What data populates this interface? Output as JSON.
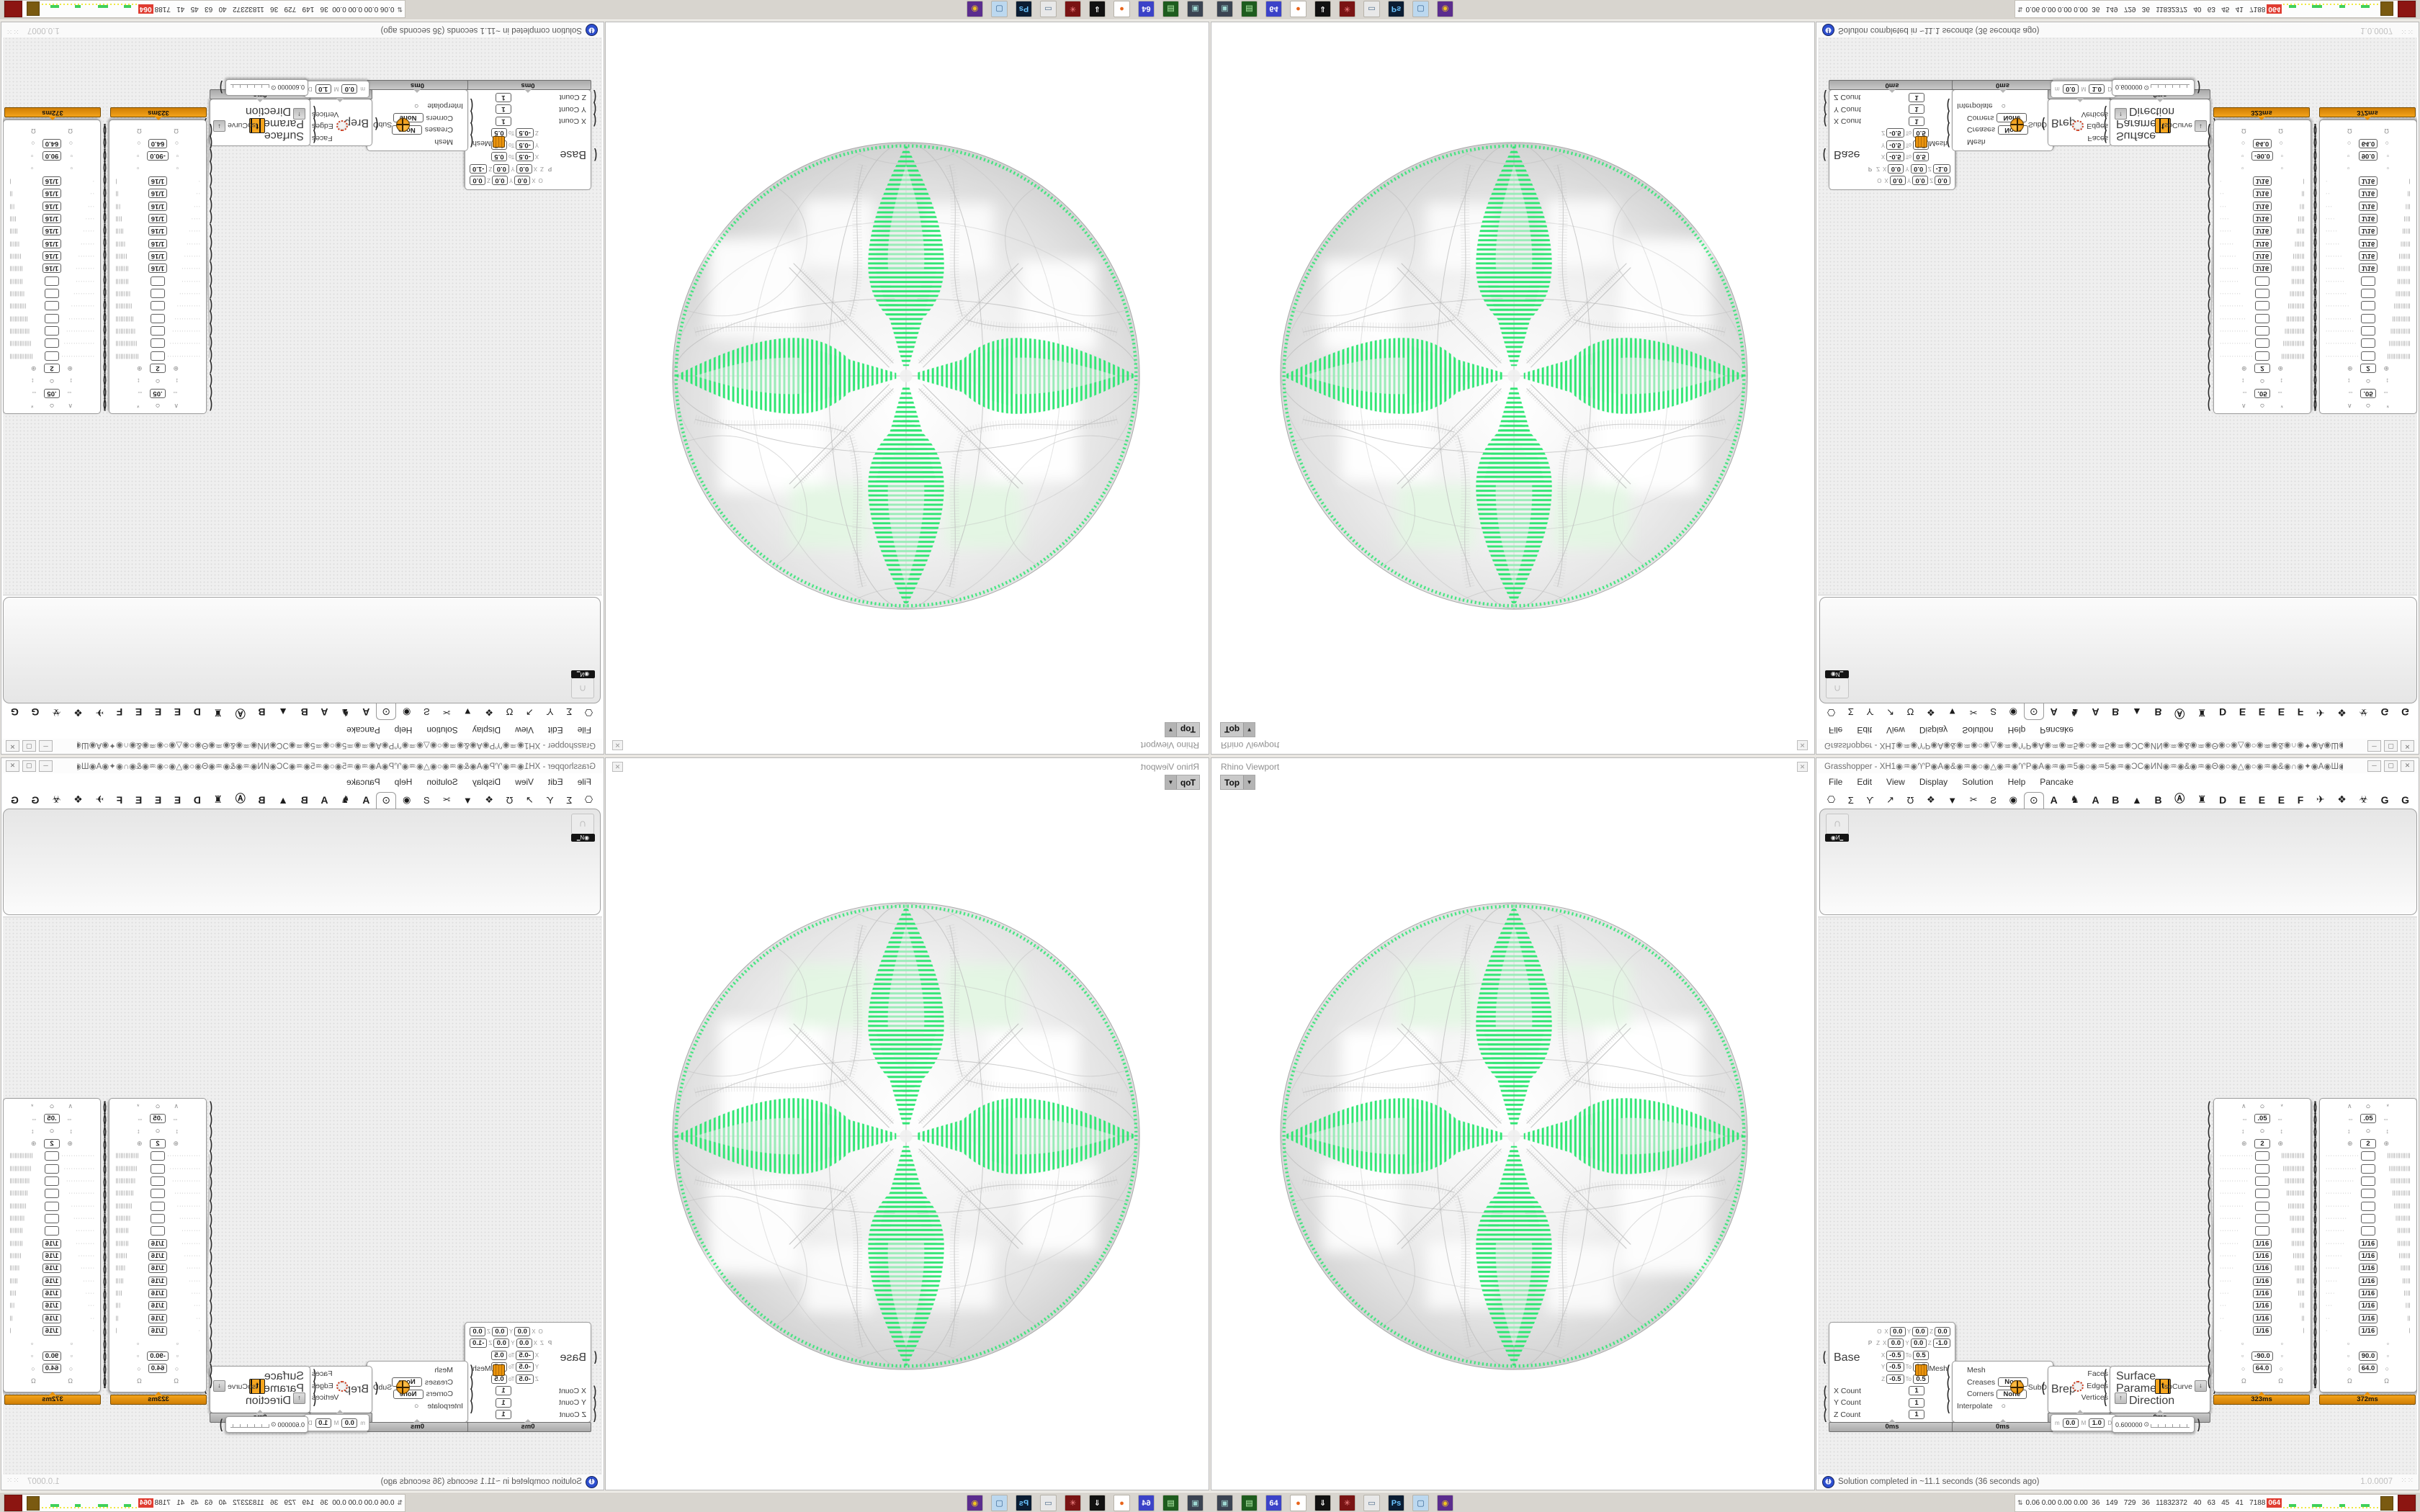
{
  "viewport": {
    "title": "Rhino Viewport",
    "close_glyph": "✕",
    "view_label": "Top",
    "dropdown_arrow": "▼"
  },
  "grasshopper": {
    "title": "Grasshopper - XH1◉♒◉♈P◉A◉&◉♒◉○◉△◉♒◉♈P◉A◉♒◉♒5◉○◉♒5◉♒◉ƆC◉ИN◉♒◉&◉♒◉Θ◉○◉△◉○◉♒◉&◉∩◉✦◉A◉Ш◉&◉∩◉ƆC◉○◉○◉○◉○◉○◉○◉○◉○Ɔ‗",
    "window_buttons": {
      "minimize": "─",
      "maximize": "▢",
      "close": "✕"
    },
    "menu": [
      "File",
      "Edit",
      "View",
      "Display",
      "Solution",
      "Help",
      "Pancake"
    ],
    "tabs_left": [
      "⎔",
      "Σ",
      "Ƴ",
      "↗",
      "Ʊ",
      "❖",
      "▼",
      "✂",
      "Ƨ",
      "◉"
    ],
    "selected_tab_glyph": "⊙",
    "tabs_right": [
      "A",
      "♞",
      "A",
      "B",
      "▲",
      "B",
      "Ⓐ",
      "♜",
      "D",
      "E",
      "E",
      "E",
      "F",
      "✈",
      "❖",
      "☣",
      "G",
      "G"
    ],
    "panel_tile": {
      "glyph": "∩",
      "badge": "◉И‗"
    },
    "status": {
      "text": "Solution completed in ~11.1 seconds (36 seconds ago)",
      "version": "1.0.0007",
      "grip": "⁙⁙"
    },
    "nodes": {
      "base": {
        "name": "Base",
        "p_label": "P",
        "point_rows": [
          {
            "label": "O",
            "fields": [
              [
                "X",
                "0.0"
              ],
              [
                "Y",
                "0.0"
              ],
              [
                "Z",
                "0.0"
              ]
            ]
          },
          {
            "label": "Z",
            "fields": [
              [
                "X",
                "0.0"
              ],
              [
                "Y",
                "0.0"
              ],
              [
                "Z",
                "-1.0"
              ]
            ]
          }
        ],
        "domains": [
          [
            "X",
            "-0.5",
            "0.5"
          ],
          [
            "Y",
            "-0.5",
            "0.5"
          ],
          [
            "Z",
            "-0.5",
            "0.5"
          ]
        ],
        "to_label": "To",
        "output": "Mesh",
        "counts": [
          [
            "X Count",
            "1"
          ],
          [
            "Y Count",
            "1"
          ],
          [
            "Z Count",
            "1"
          ]
        ],
        "time": "0ms"
      },
      "subd": {
        "input": "Mesh",
        "rows": [
          [
            "Creases",
            "None"
          ],
          [
            "Corners",
            "None"
          ]
        ],
        "interpolate_label": "Interpolate",
        "interpolate_glyph": "○",
        "output": "SubD",
        "time": "0ms"
      },
      "brep": {
        "input": "Brep",
        "outputs": [
          "Faces",
          "Edges",
          "Vertices"
        ],
        "time": "2ms"
      },
      "iso": {
        "inputs": [
          "Surface",
          "Parameter",
          "Direction"
        ],
        "param_badge": "t",
        "up_glyph": "↑",
        "down_glyph": "↓",
        "output": "IsoCurve",
        "time": "0ms"
      },
      "mmd_fields": [
        [
          "m",
          "0.0"
        ],
        [
          "M",
          "1.0"
        ],
        [
          "D",
          "6"
        ]
      ],
      "slider_value": "0.600000",
      "columns": [
        {
          "time": "323ms",
          "angle": "-90.0",
          "count": "64.0"
        },
        {
          "time": "372ms",
          "angle": "90.0",
          "count": "64.0"
        }
      ],
      "column_rows": [
        {
          "t": "g",
          "l": "∧",
          "c": "○",
          "r": "*"
        },
        {
          "t": "b",
          "l": "⇔",
          "v": ".05",
          "r": "⇔"
        },
        {
          "t": "g",
          "l": "↕",
          "c": "○",
          "r": "↕"
        },
        {
          "t": "b",
          "l": "⊕",
          "v": "2",
          "r": "⊕"
        },
        {
          "t": "s",
          "d": 14,
          "v": "",
          "b": 14
        },
        {
          "t": "s",
          "d": 13,
          "v": "",
          "b": 13
        },
        {
          "t": "s",
          "d": 12,
          "v": "",
          "b": 12
        },
        {
          "t": "s",
          "d": 11,
          "v": "",
          "b": 11
        },
        {
          "t": "s",
          "d": 10,
          "v": "",
          "b": 10
        },
        {
          "t": "s",
          "d": 9,
          "v": "",
          "b": 9
        },
        {
          "t": "s",
          "d": 8,
          "v": "",
          "b": 8
        },
        {
          "t": "s",
          "d": 8,
          "v": "1/16",
          "b": 8
        },
        {
          "t": "s",
          "d": 7,
          "v": "1/16",
          "b": 7
        },
        {
          "t": "s",
          "d": 6,
          "v": "1/16",
          "b": 6
        },
        {
          "t": "s",
          "d": 5,
          "v": "1/16",
          "b": 5
        },
        {
          "t": "s",
          "d": 4,
          "v": "1/16",
          "b": 4
        },
        {
          "t": "s",
          "d": 3,
          "v": "1/16",
          "b": 3
        },
        {
          "t": "s",
          "d": 2,
          "v": "1/16",
          "b": 2
        },
        {
          "t": "s",
          "d": 1,
          "v": "1/16",
          "b": 1
        },
        {
          "t": "g",
          "l": "▫",
          "c": "",
          "r": "▫"
        },
        {
          "t": "b",
          "l": "▫",
          "v": "{angle}",
          "r": "▫"
        },
        {
          "t": "b",
          "l": "○",
          "v": "{count}",
          "r": "○"
        },
        {
          "t": "g",
          "l": "Ω",
          "c": "",
          "r": "Ω"
        }
      ]
    }
  },
  "taskbar": {
    "icons": [
      {
        "name": "terminal-monitor-icon",
        "bg": "#3b4452",
        "fg": "#9fd8d2",
        "glyph": "▣"
      },
      {
        "name": "package-green-icon",
        "bg": "#1e5c1e",
        "fg": "#baf5b0",
        "glyph": "▤"
      },
      {
        "name": "floppy-64-icon",
        "bg": "#3b43c8",
        "fg": "#ffffff",
        "glyph": "64"
      },
      {
        "name": "firefox-icon",
        "bg": "#ffffff",
        "fg": "#e8641b",
        "glyph": "●"
      },
      {
        "name": "inkscape-arrow-icon",
        "bg": "#111111",
        "fg": "#ffffff",
        "glyph": "⇓"
      },
      {
        "name": "red-rosette-icon",
        "bg": "#7a1414",
        "fg": "#ff9090",
        "glyph": "✳"
      },
      {
        "name": "window-frame-icon",
        "bg": "#e8e8e8",
        "fg": "#4a6a8a",
        "glyph": "▭"
      },
      {
        "name": "photoshop-icon",
        "bg": "#0b1d33",
        "fg": "#6ac3ff",
        "glyph": "Ps"
      },
      {
        "name": "image-viewer-icon",
        "bg": "#bcd8ef",
        "fg": "#2f5f8f",
        "glyph": "▢"
      },
      {
        "name": "purple-bot-icon",
        "bg": "#5b2d8e",
        "fg": "#f0c420",
        "glyph": "◉"
      }
    ],
    "monitor": {
      "glyph": "⇅",
      "values": "0.06 0.00 0.00 0.00  36   149   729   36   11832372   40   63   45   41   7188",
      "badge": "064"
    }
  },
  "sphere": {
    "green": "#2fe673",
    "wire": "#bdbdbd"
  }
}
